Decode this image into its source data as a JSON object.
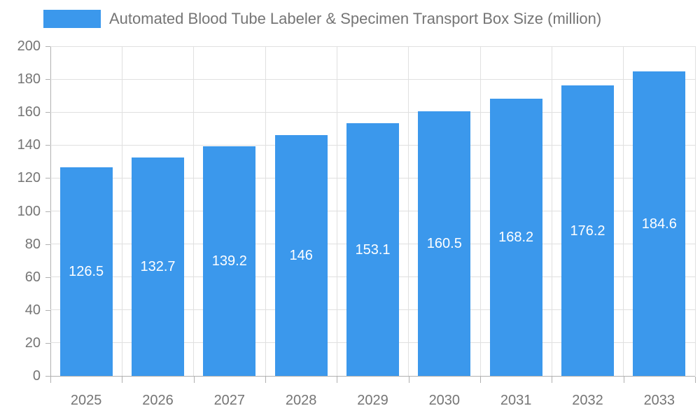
{
  "legend": {
    "label": "Automated Blood Tube Labeler & Specimen Transport Box Size (million)",
    "swatch_color": "#3B98EC"
  },
  "chart_data": {
    "type": "bar",
    "title": "Automated Blood Tube Labeler & Specimen Transport Box Size (million)",
    "categories": [
      "2025",
      "2026",
      "2027",
      "2028",
      "2029",
      "2030",
      "2031",
      "2032",
      "2033"
    ],
    "values": [
      126.5,
      132.7,
      139.2,
      146,
      153.1,
      160.5,
      168.2,
      176.2,
      184.6
    ],
    "data_labels": [
      "126.5",
      "132.7",
      "139.2",
      "146",
      "153.1",
      "160.5",
      "168.2",
      "176.2",
      "184.6"
    ],
    "xlabel": "",
    "ylabel": "",
    "ylim": [
      0,
      200
    ],
    "yticks": [
      0,
      20,
      40,
      60,
      80,
      100,
      120,
      140,
      160,
      180,
      200
    ],
    "grid": true,
    "legend_position": "top-left",
    "bar_color": "#3B98EC",
    "data_label_color": "#ffffff"
  },
  "colors": {
    "axis_text": "#757575",
    "axis_line": "#b0b0b0",
    "grid_line": "#e0e0e0",
    "background": "#ffffff"
  }
}
